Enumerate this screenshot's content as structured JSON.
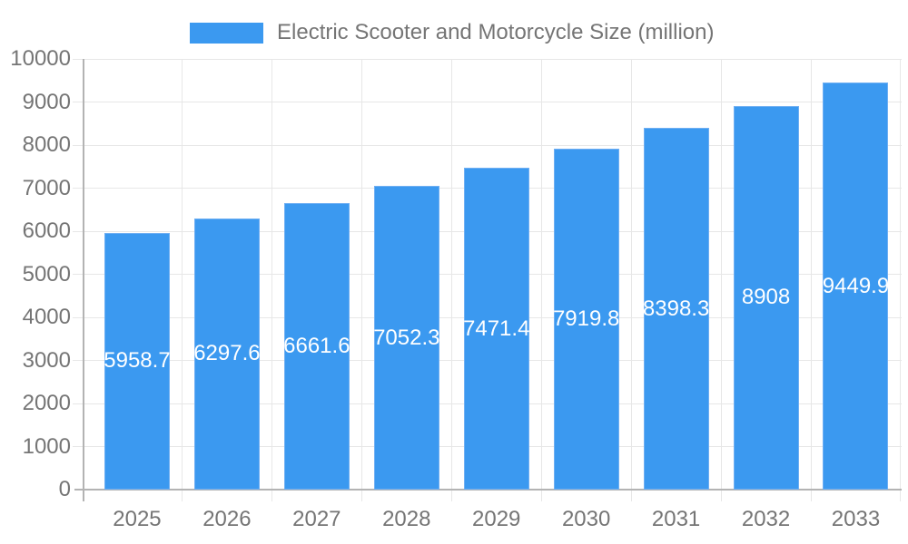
{
  "legend": {
    "label": "Electric Scooter and Motorcycle Size (million)"
  },
  "chart_data": {
    "type": "bar",
    "title": "Electric Scooter and Motorcycle Size (million)",
    "categories": [
      "2025",
      "2026",
      "2027",
      "2028",
      "2029",
      "2030",
      "2031",
      "2032",
      "2033"
    ],
    "series": [
      {
        "name": "Electric Scooter and Motorcycle Size (million)",
        "values": [
          5958.7,
          6297.6,
          6661.6,
          7052.3,
          7471.4,
          7919.8,
          8398.3,
          8908,
          9449.9
        ],
        "labels": [
          "5958.7",
          "6297.6",
          "6661.6",
          "7052.3",
          "7471.4",
          "7919.8",
          "8398.3",
          "8908",
          "9449.9"
        ]
      }
    ],
    "xlabel": "",
    "ylabel": "",
    "ylim": [
      0,
      10000
    ],
    "yticks": [
      0,
      1000,
      2000,
      3000,
      4000,
      5000,
      6000,
      7000,
      8000,
      9000,
      10000
    ],
    "ytick_labels": [
      "0",
      "1000",
      "2000",
      "3000",
      "4000",
      "5000",
      "6000",
      "7000",
      "8000",
      "9000",
      "10000"
    ],
    "grid": true,
    "legend_position": "top",
    "colors": {
      "bar_fill": "#3B99F0",
      "bar_border": "#6FAFF3",
      "value_label": "#FFFFFF",
      "axis_text": "#757575",
      "gridline": "#E7E7E7",
      "axis_line": "#B3B3B3",
      "background": "#FFFFFF"
    }
  }
}
